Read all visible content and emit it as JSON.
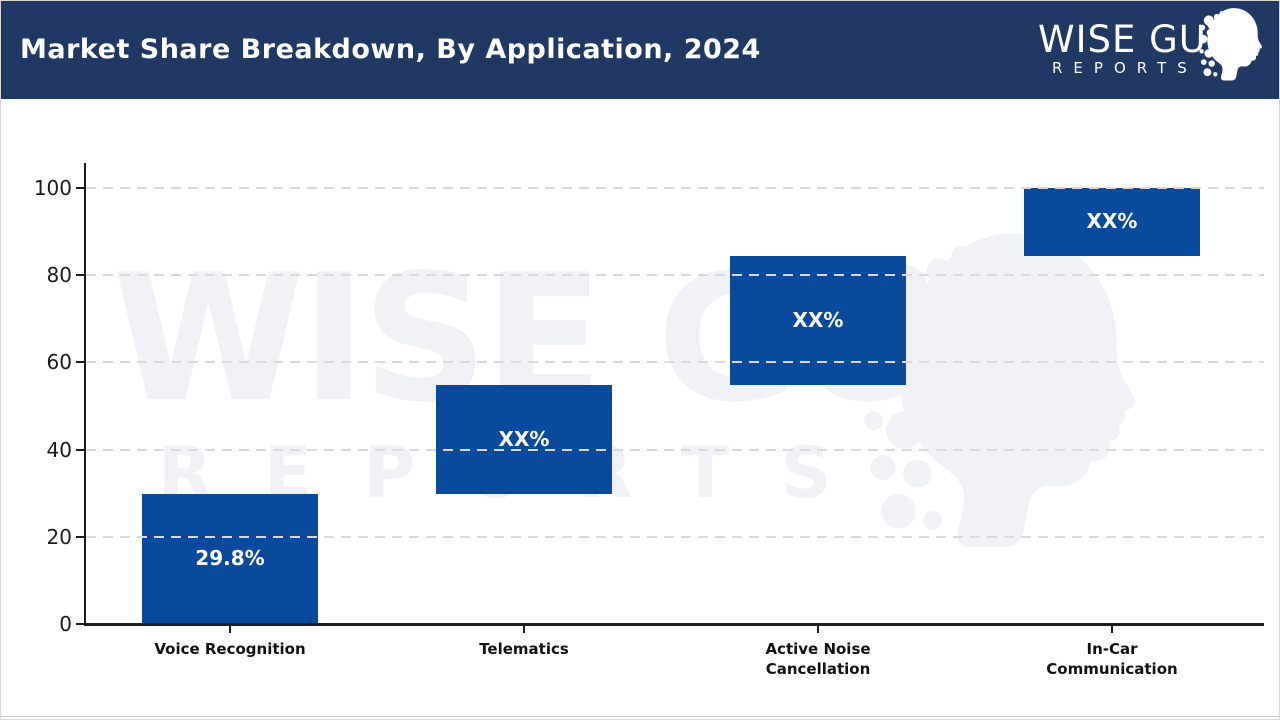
{
  "header": {
    "title": "Market Share Breakdown, By Application, 2024",
    "logo": {
      "line1": "WISE GUY",
      "line2": "REPORTS",
      "icon": "dotted-head-profile-icon"
    }
  },
  "watermark": {
    "line1": "WISE GUY",
    "line2": "REPORTS",
    "icon": "dotted-head-profile-icon"
  },
  "colors": {
    "header_bg": "#203864",
    "bar_fill": "#0a4a9d",
    "grid": "#d9d9d9",
    "axis": "#1c1c1c",
    "watermark": "#f0f1f4",
    "label_on_bar": "#ffffff"
  },
  "chart_data": {
    "type": "bar",
    "subtype": "waterfall",
    "title": "Market Share Breakdown, By Application, 2024",
    "categories": [
      "Voice Recognition",
      "Telematics",
      "Active Noise Cancellation",
      "In-Car Communication"
    ],
    "segments": [
      {
        "category": "Voice Recognition",
        "start": 0,
        "end": 29.8,
        "label": "29.8%"
      },
      {
        "category": "Telematics",
        "start": 29.8,
        "end": 54.8,
        "label": "XX%"
      },
      {
        "category": "Active Noise Cancellation",
        "start": 54.8,
        "end": 84.4,
        "label": "XX%"
      },
      {
        "category": "In-Car Communication",
        "start": 84.4,
        "end": 100,
        "label": "XX%"
      }
    ],
    "yticks": [
      0,
      20,
      40,
      60,
      80,
      100
    ],
    "ylim": [
      0,
      105
    ],
    "xlabel": "",
    "ylabel": "",
    "grid": "horizontal-dashed",
    "legend": "none"
  }
}
